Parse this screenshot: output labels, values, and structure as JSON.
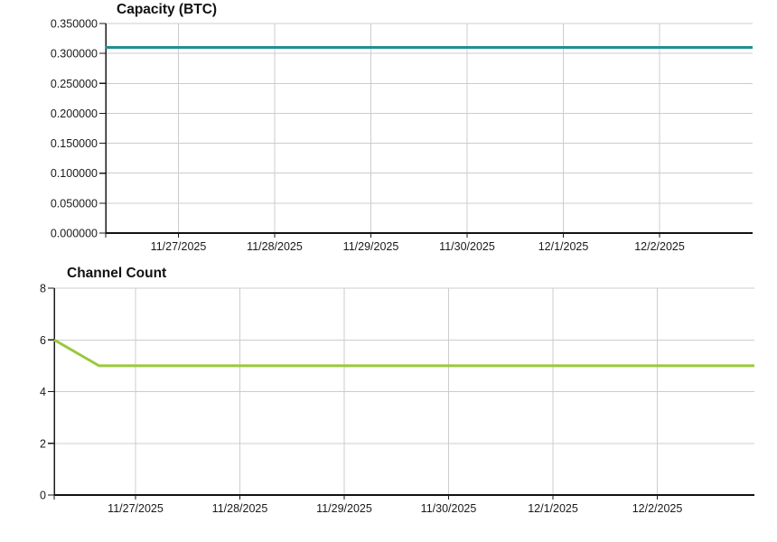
{
  "page": {
    "background": "#ffffff"
  },
  "colors": {
    "capacity_line": "#238d94",
    "channel_line": "#9ac93b",
    "gridline": "#cccccc",
    "axis": "#1a1a1a",
    "tick_label": "#1a1a1a"
  },
  "chart_data": [
    {
      "type": "line",
      "title": "Capacity (BTC)",
      "line_color": "#238d94",
      "xlabel": "",
      "ylabel": "",
      "ylim": [
        0,
        0.35
      ],
      "grid": true,
      "legend": "none",
      "x_range_days": [
        0,
        6.72
      ],
      "yticks": [
        {
          "value": 0.35,
          "label": "0.350000"
        },
        {
          "value": 0.3,
          "label": "0.300000"
        },
        {
          "value": 0.25,
          "label": "0.250000"
        },
        {
          "value": 0.2,
          "label": "0.200000"
        },
        {
          "value": 0.15,
          "label": "0.150000"
        },
        {
          "value": 0.1,
          "label": "0.100000"
        },
        {
          "value": 0.05,
          "label": "0.050000"
        },
        {
          "value": 0.0,
          "label": "0.000000"
        }
      ],
      "xtick_labels": [
        "11/27/2025",
        "11/28/2025",
        "11/29/2025",
        "11/30/2025",
        "12/1/2025",
        "12/2/2025"
      ],
      "series": [
        {
          "name": "capacity_btc",
          "points": [
            [
              0,
              0.31
            ],
            [
              6.72,
              0.31
            ]
          ]
        }
      ]
    },
    {
      "type": "line",
      "title": "Channel Count",
      "line_color": "#9ac93b",
      "xlabel": "",
      "ylabel": "",
      "ylim": [
        0,
        8
      ],
      "grid": true,
      "legend": "none",
      "x_range_days": [
        0,
        6.72
      ],
      "yticks": [
        {
          "value": 8,
          "label": "8"
        },
        {
          "value": 6,
          "label": "6"
        },
        {
          "value": 4,
          "label": "4"
        },
        {
          "value": 2,
          "label": "2"
        },
        {
          "value": 0,
          "label": "0"
        }
      ],
      "xtick_labels": [
        "11/27/2025",
        "11/28/2025",
        "11/29/2025",
        "11/30/2025",
        "12/1/2025",
        "12/2/2025"
      ],
      "series": [
        {
          "name": "channel_count",
          "points": [
            [
              0,
              6
            ],
            [
              0.43,
              5
            ],
            [
              6.72,
              5
            ]
          ]
        }
      ]
    }
  ]
}
